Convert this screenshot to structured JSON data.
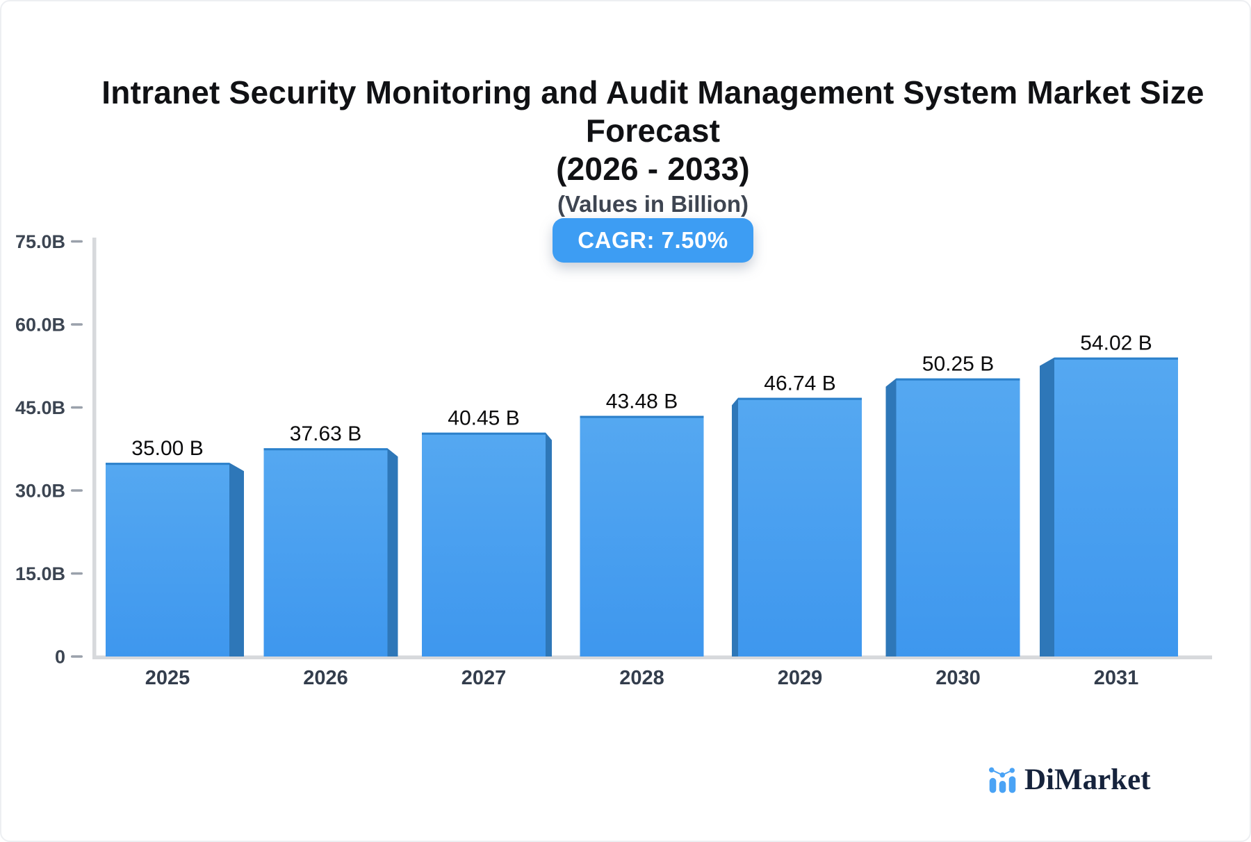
{
  "header": {
    "title_line1": "Intranet Security Monitoring and Audit Management System Market Size Forecast",
    "title_line2": "(2026 - 2033)",
    "subtitle": "(Values in Billion)",
    "cagr_badge": "CAGR: 7.50%"
  },
  "chart_data": {
    "type": "bar",
    "title": "Intranet Security Monitoring and Audit Management System Market Size Forecast (2026 - 2033)",
    "subtitle": "(Values in Billion)",
    "cagr": "7.50%",
    "categories": [
      "2025",
      "2026",
      "2027",
      "2028",
      "2029",
      "2030",
      "2031"
    ],
    "values": [
      35.0,
      37.63,
      40.45,
      43.48,
      46.74,
      50.25,
      54.02
    ],
    "value_labels": [
      "35.00 B",
      "37.63 B",
      "40.45 B",
      "43.48 B",
      "46.74 B",
      "50.25 B",
      "54.02 B"
    ],
    "xlabel": "",
    "ylabel": "",
    "ylim": [
      0,
      75
    ],
    "yticks": [
      {
        "value": 0,
        "label": "0"
      },
      {
        "value": 15,
        "label": "15.0B"
      },
      {
        "value": 30,
        "label": "30.0B"
      },
      {
        "value": 45,
        "label": "45.0B"
      },
      {
        "value": 60,
        "label": "60.0B"
      },
      {
        "value": 75,
        "label": "75.0B"
      }
    ],
    "grid": false,
    "legend": "none",
    "colors": {
      "bar_face_top": "#55a8f1",
      "bar_face_bottom": "#3e97ee",
      "bar_side": "#2e77b8",
      "bar_top_edge": "#2c80ca",
      "axis_line": "#d7d9dc",
      "tick_mark": "#9aa1ab",
      "tick_label": "#3c4552",
      "year_label": "#333d4c",
      "value_label": "#0b0b0c"
    }
  },
  "logo": {
    "text": "DiMarket",
    "icon": "bar-chart-logo-icon",
    "text_color": "#16233c",
    "icon_color": "#4aa3f5"
  }
}
